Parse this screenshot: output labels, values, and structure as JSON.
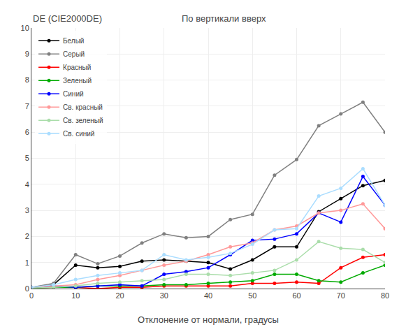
{
  "chart_data": {
    "type": "line",
    "title": "DE (CIE2000DE)",
    "subtitle": "По вертикали вверх",
    "x_label": "Отклонение от нормали, градусы",
    "x": [
      0,
      5,
      10,
      15,
      20,
      25,
      30,
      35,
      40,
      45,
      50,
      55,
      60,
      65,
      70,
      75,
      80
    ],
    "series": [
      {
        "name": "Белый",
        "color": "#000000",
        "values": [
          0.05,
          0.15,
          0.9,
          0.8,
          0.85,
          1.05,
          1.1,
          1.05,
          1.0,
          0.75,
          1.1,
          1.6,
          1.6,
          2.95,
          3.45,
          3.95,
          4.15
        ]
      },
      {
        "name": "Серый",
        "color": "#808080",
        "values": [
          0.05,
          0.2,
          1.3,
          0.95,
          1.25,
          1.75,
          2.1,
          1.95,
          2.0,
          2.65,
          2.85,
          4.35,
          4.95,
          6.25,
          6.7,
          7.15,
          6.0
        ]
      },
      {
        "name": "Красный",
        "color": "#ff0000",
        "values": [
          0.02,
          0.05,
          0.05,
          0.0,
          0.05,
          0.05,
          0.1,
          0.1,
          0.1,
          0.1,
          0.2,
          0.2,
          0.25,
          0.2,
          0.8,
          1.2,
          1.3
        ]
      },
      {
        "name": "Зеленый",
        "color": "#00aa00",
        "values": [
          0.02,
          0.05,
          0.05,
          0.1,
          0.1,
          0.1,
          0.15,
          0.15,
          0.2,
          0.25,
          0.3,
          0.55,
          0.55,
          0.3,
          0.25,
          0.6,
          0.9
        ]
      },
      {
        "name": "Синий",
        "color": "#0000ff",
        "values": [
          0.05,
          0.1,
          0.05,
          0.1,
          0.15,
          0.1,
          0.55,
          0.65,
          0.8,
          1.3,
          1.85,
          1.9,
          2.1,
          2.9,
          2.55,
          4.3,
          3.2
        ]
      },
      {
        "name": "Св. красный",
        "color": "#ff9999",
        "values": [
          0.05,
          0.1,
          0.15,
          0.35,
          0.5,
          0.7,
          0.9,
          1.05,
          1.3,
          1.6,
          1.75,
          2.25,
          2.4,
          2.9,
          3.0,
          3.25,
          2.3
        ]
      },
      {
        "name": "Св. зеленый",
        "color": "#aaddaa",
        "values": [
          0.02,
          0.05,
          0.1,
          0.2,
          0.25,
          0.3,
          0.35,
          0.55,
          0.55,
          0.5,
          0.6,
          0.7,
          1.1,
          1.8,
          1.55,
          1.5,
          1.0
        ]
      },
      {
        "name": "Св. синий",
        "color": "#aaddff",
        "values": [
          0.05,
          0.15,
          0.35,
          0.5,
          0.6,
          0.7,
          1.3,
          1.1,
          1.2,
          1.35,
          1.7,
          2.25,
          2.3,
          3.55,
          3.85,
          4.6,
          3.2
        ]
      }
    ],
    "xlim": [
      0,
      80
    ],
    "ylim": [
      0,
      10
    ],
    "xticks": [
      0,
      10,
      20,
      30,
      40,
      50,
      60,
      70,
      80
    ],
    "yticks": [
      0,
      1,
      2,
      3,
      4,
      5,
      6,
      7,
      8,
      9,
      10
    ],
    "marker": "circle",
    "line_style": "solid",
    "grid": true,
    "legend": "upper left"
  }
}
